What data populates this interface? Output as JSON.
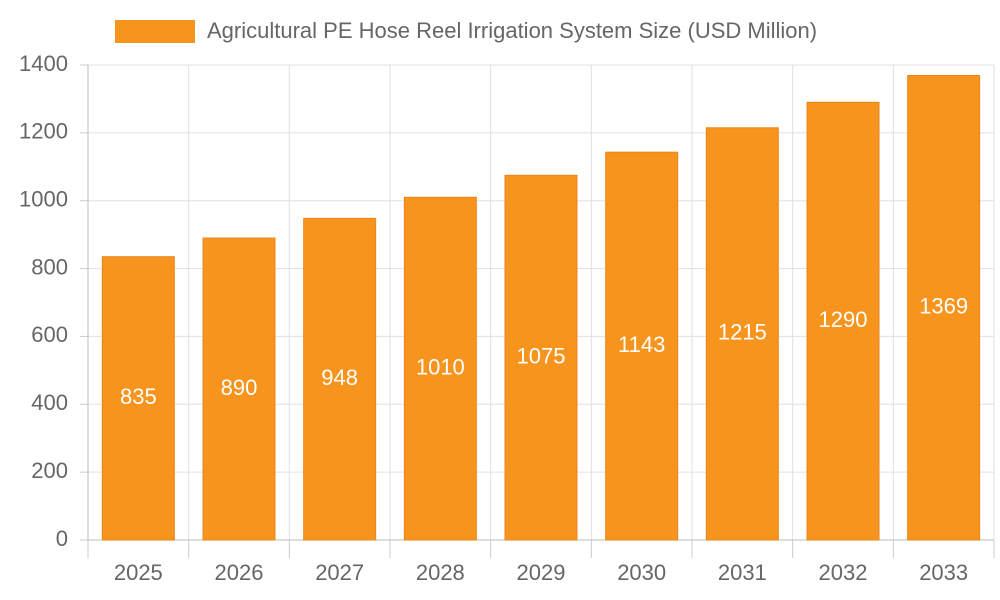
{
  "chart_data": {
    "type": "bar",
    "categories": [
      "2025",
      "2026",
      "2027",
      "2028",
      "2029",
      "2030",
      "2031",
      "2032",
      "2033"
    ],
    "series": [
      {
        "name": "Agricultural PE Hose Reel Irrigation System Size (USD Million)",
        "color": "#f7941d",
        "values": [
          835,
          890,
          948,
          1010,
          1075,
          1143,
          1215,
          1290,
          1369
        ]
      }
    ],
    "ylim": [
      0,
      1400
    ],
    "yticks": [
      0,
      200,
      400,
      600,
      800,
      1000,
      1200,
      1400
    ],
    "grid": true,
    "legend": "top"
  }
}
